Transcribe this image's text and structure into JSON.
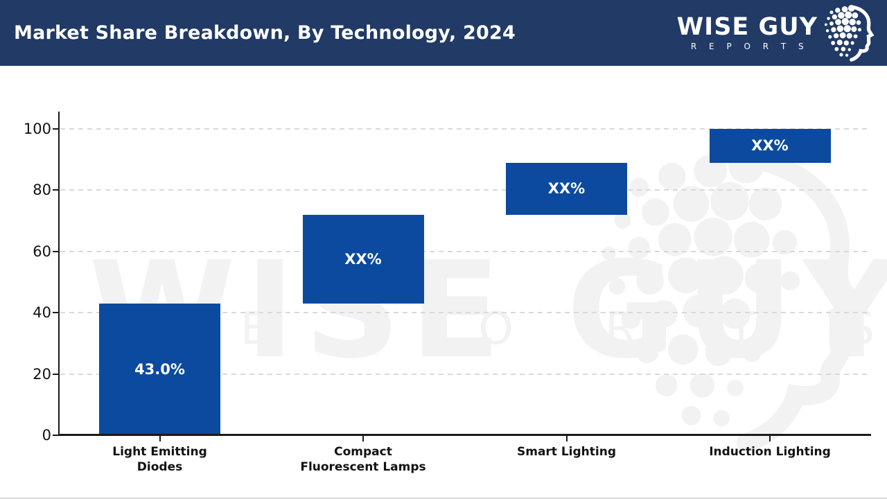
{
  "header": {
    "title": "Market Share Breakdown, By Technology, 2024",
    "logo": {
      "name": "WISE GUY",
      "tagline": "R E P O R T S"
    }
  },
  "watermark": {
    "line1": "WISE GUY",
    "line2": "R E P O R T S"
  },
  "chart_data": {
    "type": "bar",
    "subtype": "waterfall",
    "title": "Market Share Breakdown, By Technology, 2024",
    "categories": [
      [
        "Light Emitting",
        "Diodes"
      ],
      [
        "Compact",
        "Fluorescent Lamps"
      ],
      [
        "Smart Lighting"
      ],
      [
        "Induction Lighting"
      ]
    ],
    "segments": [
      {
        "category": "Light Emitting Diodes",
        "start": 0,
        "end": 43,
        "value": 43,
        "label": "43.0%"
      },
      {
        "category": "Compact Fluorescent Lamps",
        "start": 43,
        "end": 72,
        "value": 29,
        "label": "XX%"
      },
      {
        "category": "Smart Lighting",
        "start": 72,
        "end": 89,
        "value": 17,
        "label": "XX%"
      },
      {
        "category": "Induction Lighting",
        "start": 89,
        "end": 100,
        "value": 11,
        "label": "XX%"
      }
    ],
    "yticks": [
      0,
      20,
      40,
      60,
      80,
      100
    ],
    "ylim": [
      0,
      105
    ],
    "xlabel": "",
    "ylabel": "",
    "grid": "horizontal-dashed",
    "legend": "none",
    "colors": {
      "bar": "#0B4A9F",
      "bar_label": "#ffffff",
      "header_bg": "#213A66",
      "axis": "#1a1a1a",
      "grid": "#d9d9d9",
      "watermark": "#f2f2f2"
    }
  }
}
